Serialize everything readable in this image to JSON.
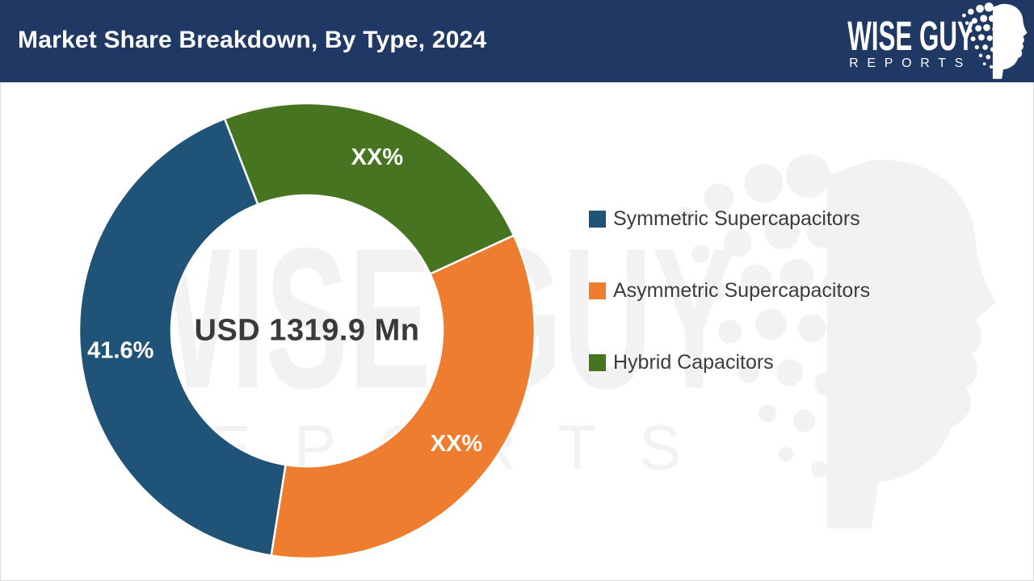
{
  "header": {
    "title": "Market Share Breakdown, By Type, 2024",
    "logo": {
      "brand_top": "WISE GUY",
      "brand_bottom": "REPORTS"
    }
  },
  "chart_data": {
    "type": "donut",
    "title": "Market Share Breakdown, By Type, 2024",
    "center_label": "USD 1319.9 Mn",
    "start_angle_deg": -21.2,
    "segments": [
      {
        "label": "Hybrid Capacitors",
        "value_pct": 24.0,
        "display_label": "XX%",
        "color": "#477420"
      },
      {
        "label": "Asymmetric Supercapacitors",
        "value_pct": 34.4,
        "display_label": "XX%",
        "color": "#ee7d2f"
      },
      {
        "label": "Symmetric Supercapacitors",
        "value_pct": 41.6,
        "display_label": "41.6%",
        "color": "#1f5377"
      }
    ],
    "legend": {
      "position": "right",
      "items": [
        "Symmetric Supercapacitors",
        "Asymmetric Supercapacitors",
        "Hybrid Capacitors"
      ]
    }
  },
  "watermark": {
    "brand_top": "WISE GUY",
    "brand_bottom": "REPORTS"
  },
  "colors": {
    "header_bg": "#1f3864",
    "segment_blue": "#1f5377",
    "segment_orange": "#ee7d2f",
    "segment_green": "#477420",
    "center_text": "#3a3a3a",
    "legend_text": "#3c3c3c",
    "watermark": "#f2f2f2",
    "label_text": "#ffffff"
  }
}
